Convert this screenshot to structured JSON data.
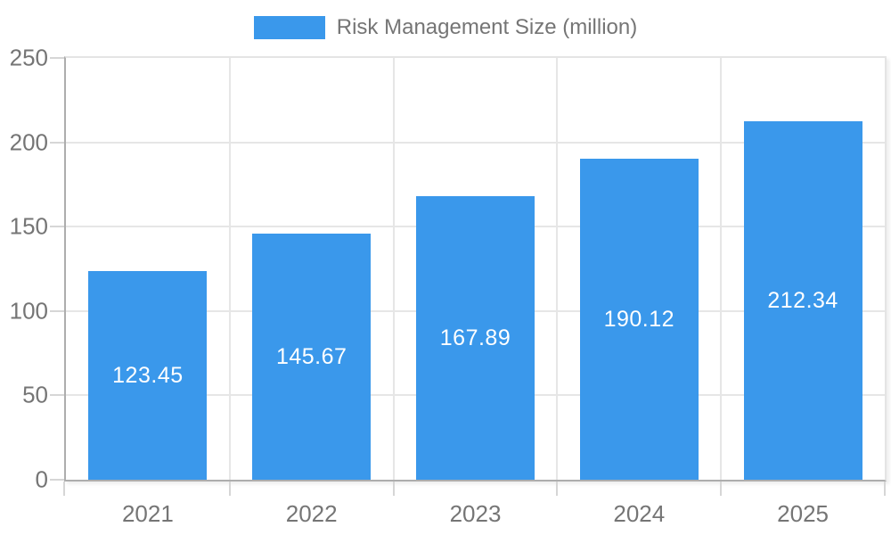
{
  "chart_data": {
    "type": "bar",
    "title": "",
    "legend": "Risk Management Size (million)",
    "categories": [
      "2021",
      "2022",
      "2023",
      "2024",
      "2025"
    ],
    "values": [
      123.45,
      145.67,
      167.89,
      190.12,
      212.34
    ],
    "value_labels": [
      "123.45",
      "145.67",
      "167.89",
      "190.12",
      "212.34"
    ],
    "xlabel": "",
    "ylabel": "",
    "ylim": [
      0,
      250
    ],
    "yticks": [
      0,
      50,
      100,
      150,
      200,
      250
    ],
    "ytick_labels": [
      "0",
      "50",
      "100",
      "150",
      "200",
      "250"
    ],
    "grid": true,
    "legend_position": "top-center",
    "colors": {
      "bar": "#3A98EB",
      "bar_label": "#FFFFFF",
      "axis_text": "#757575",
      "axis_line": "#ADADAD",
      "tick_line": "#D6D6D6",
      "gridline": "#E6E6E6",
      "plot_border": "#E4E4E4",
      "background": "#FFFFFF"
    }
  }
}
